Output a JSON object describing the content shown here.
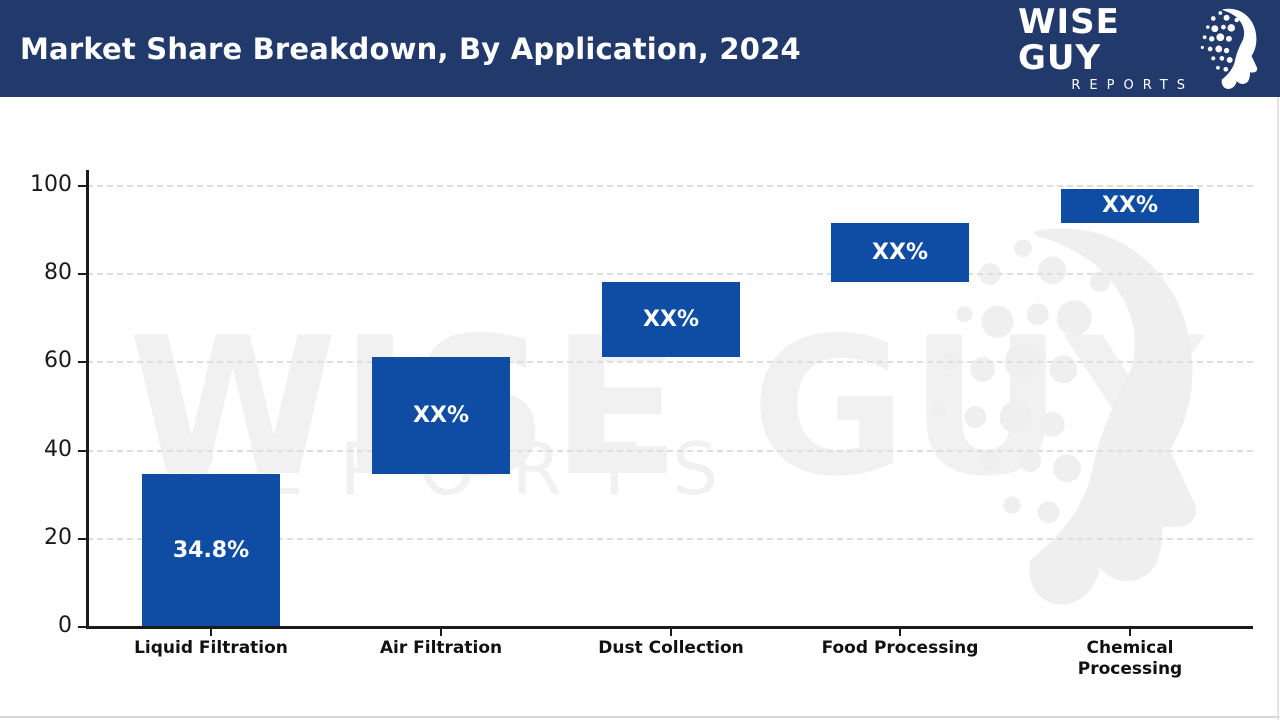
{
  "header": {
    "title": "Market Share Breakdown, By Application, 2024",
    "bg_color": "#22396b",
    "logo": {
      "line1": "WISE GUY",
      "line2": "REPORTS"
    }
  },
  "watermark": {
    "line1": "WISE GUY",
    "line2": "REPORTS"
  },
  "chart_data": {
    "type": "bar",
    "subtype": "waterfall",
    "title": "Market Share Breakdown, By Application, 2024",
    "categories": [
      "Liquid Filtration",
      "Air Filtration",
      "Dust Collection",
      "Food Processing",
      "Chemical Processing"
    ],
    "segments": [
      {
        "category": "Liquid Filtration",
        "start": 0,
        "end": 34.8,
        "label": "34.8%"
      },
      {
        "category": "Air Filtration",
        "start": 34.8,
        "end": 61.2,
        "label": "XX%"
      },
      {
        "category": "Dust Collection",
        "start": 61.2,
        "end": 78.2,
        "label": "XX%"
      },
      {
        "category": "Food Processing",
        "start": 78.2,
        "end": 91.6,
        "label": "XX%"
      },
      {
        "category": "Chemical Processing",
        "start": 91.6,
        "end": 99.4,
        "label": "XX%"
      }
    ],
    "xlabel": "",
    "ylabel": "",
    "ylim": [
      0,
      100
    ],
    "yticks": [
      0,
      20,
      40,
      60,
      80,
      100
    ],
    "grid": "horizontal-dashed",
    "legend": "none",
    "bar_color": "#0e4da3",
    "bar_label_color": "#ffffff",
    "axis_color": "#1b1b1b",
    "gridline_color": "#dedede"
  }
}
